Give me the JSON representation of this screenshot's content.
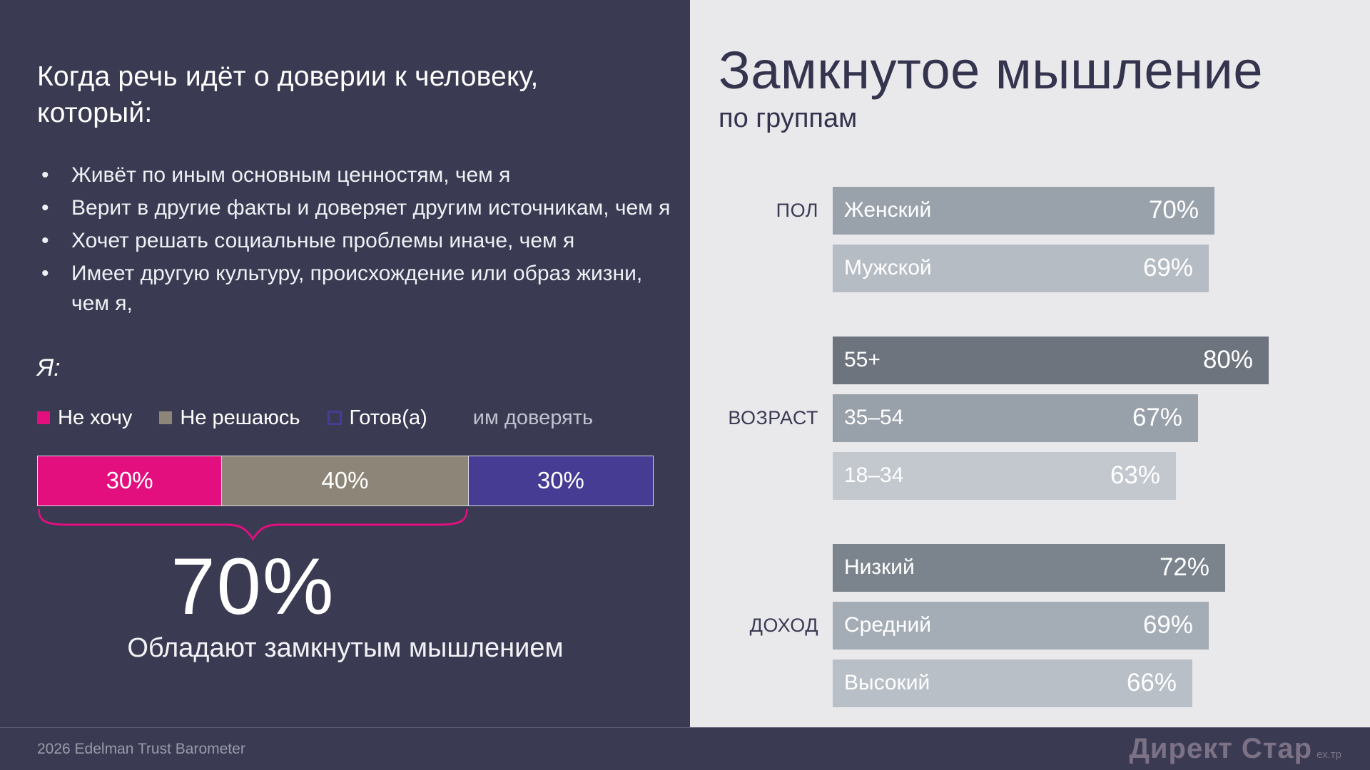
{
  "slide": {
    "background_dark": "#3a3a52",
    "background_light": "#e9e9ec"
  },
  "left_panel": {
    "title": "Когда речь идёт о доверии к человеку, который:",
    "bullets": [
      "Живёт по иным основным ценностям, чем я",
      "Верит в другие факты и доверяет другим источникам, чем я",
      "Хочет решать социальные проблемы иначе, чем я",
      "Имеет другую культуру, происхождение или образ жизни, чем я,"
    ],
    "ya_label": "Я:",
    "legend_suffix": "им доверять",
    "footer": "2026 Edelman Trust Barometer"
  },
  "right_panel": {
    "watermark": "Директ Стар",
    "watermark_suffix": "ех.тр"
  },
  "chart_data": [
    {
      "type": "bar",
      "variant": "stacked-horizontal",
      "title": "Я:",
      "categories": [
        "Не хочу",
        "Не решаюсь",
        "Готов(а)"
      ],
      "values": [
        30,
        40,
        30
      ],
      "segment_labels": [
        "30%",
        "40%",
        "30%"
      ],
      "colors": [
        "#e30f7e",
        "#8d8577",
        "#473c93"
      ],
      "unit": "percent",
      "xlim": [
        0,
        100
      ],
      "annotation": {
        "span_percent": 70,
        "covers": [
          "Не хочу",
          "Не решаюсь"
        ],
        "value_label": "70%",
        "caption": "Обладают замкнутым мышлением"
      }
    },
    {
      "type": "bar",
      "variant": "grouped-horizontal",
      "title": "Замкнутое мышление",
      "subtitle": "по группам",
      "xlim": [
        0,
        80
      ],
      "unit": "percent",
      "groups": [
        {
          "label": "ПОЛ",
          "bars": [
            {
              "category": "Женский",
              "value": 70,
              "label": "70%",
              "color": "#99a1ab"
            },
            {
              "category": "Мужской",
              "value": 69,
              "label": "69%",
              "color": "#b6bcc4"
            }
          ]
        },
        {
          "label": "ВОЗРАСТ",
          "bars": [
            {
              "category": "55+",
              "value": 80,
              "label": "80%",
              "color": "#6d747d"
            },
            {
              "category": "35–54",
              "value": 67,
              "label": "67%",
              "color": "#98a0aa"
            },
            {
              "category": "18–34",
              "value": 63,
              "label": "63%",
              "color": "#c2c8ce"
            }
          ]
        },
        {
          "label": "ДОХОД",
          "bars": [
            {
              "category": "Низкий",
              "value": 72,
              "label": "72%",
              "color": "#7b838c"
            },
            {
              "category": "Средний",
              "value": 69,
              "label": "69%",
              "color": "#a4acb5"
            },
            {
              "category": "Высокий",
              "value": 66,
              "label": "66%",
              "color": "#b9bfc7"
            }
          ]
        }
      ]
    }
  ]
}
